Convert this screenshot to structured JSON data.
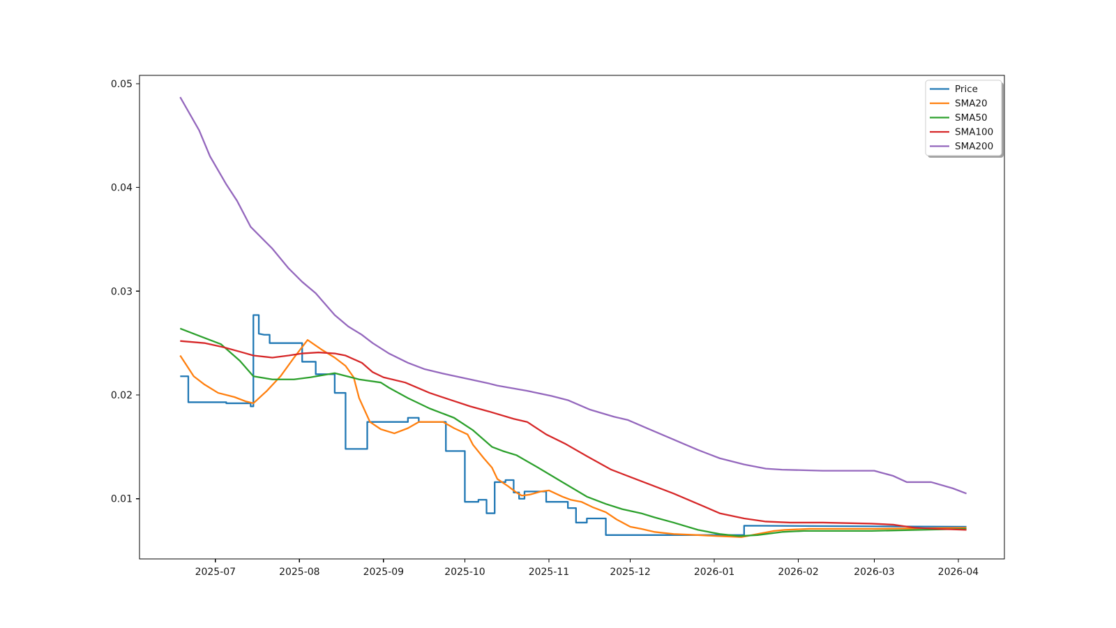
{
  "figure": {
    "background": "#ffffff",
    "title": ""
  },
  "legend": {
    "position": "upper right",
    "background": "#ffffff",
    "border_color": "#cccccc",
    "shadow_color": "#9e9e9e",
    "items": [
      "Price",
      "SMA20",
      "SMA50",
      "SMA100",
      "SMA200"
    ]
  },
  "chart_data": {
    "type": "line",
    "title": "",
    "xlabel": "",
    "ylabel": "",
    "grid": false,
    "legend_position": "upper right",
    "xlim": [
      "2025-06-03",
      "2026-04-18"
    ],
    "ylim": [
      0.0042,
      0.0508
    ],
    "x_ticks": [
      {
        "date": "2025-07-01",
        "label": "2025-07"
      },
      {
        "date": "2025-08-01",
        "label": "2025-08"
      },
      {
        "date": "2025-09-01",
        "label": "2025-09"
      },
      {
        "date": "2025-10-01",
        "label": "2025-10"
      },
      {
        "date": "2025-11-01",
        "label": "2025-11"
      },
      {
        "date": "2025-12-01",
        "label": "2025-12"
      },
      {
        "date": "2026-01-01",
        "label": "2026-01"
      },
      {
        "date": "2026-02-01",
        "label": "2026-02"
      },
      {
        "date": "2026-03-01",
        "label": "2026-03"
      },
      {
        "date": "2026-04-01",
        "label": "2026-04"
      }
    ],
    "y_ticks": [
      {
        "value": 0.01,
        "label": "0.01"
      },
      {
        "value": 0.02,
        "label": "0.02"
      },
      {
        "value": 0.03,
        "label": "0.03"
      },
      {
        "value": 0.04,
        "label": "0.04"
      },
      {
        "value": 0.05,
        "label": "0.05"
      }
    ],
    "series": [
      {
        "name": "Price",
        "color": "#1f77b4",
        "style": "step",
        "points": [
          [
            "2025-06-18",
            0.0218
          ],
          [
            "2025-06-21",
            0.0218
          ],
          [
            "2025-06-21",
            0.0193
          ],
          [
            "2025-07-05",
            0.0193
          ],
          [
            "2025-07-05",
            0.0192
          ],
          [
            "2025-07-14",
            0.0192
          ],
          [
            "2025-07-14",
            0.0189
          ],
          [
            "2025-07-15",
            0.0189
          ],
          [
            "2025-07-15",
            0.0277
          ],
          [
            "2025-07-17",
            0.0277
          ],
          [
            "2025-07-17",
            0.0259
          ],
          [
            "2025-07-19",
            0.0258
          ],
          [
            "2025-07-21",
            0.0258
          ],
          [
            "2025-07-21",
            0.025
          ],
          [
            "2025-08-02",
            0.025
          ],
          [
            "2025-08-02",
            0.0232
          ],
          [
            "2025-08-07",
            0.0232
          ],
          [
            "2025-08-07",
            0.022
          ],
          [
            "2025-08-14",
            0.022
          ],
          [
            "2025-08-14",
            0.0202
          ],
          [
            "2025-08-18",
            0.0202
          ],
          [
            "2025-08-18",
            0.0148
          ],
          [
            "2025-08-26",
            0.0148
          ],
          [
            "2025-08-26",
            0.0174
          ],
          [
            "2025-09-10",
            0.0174
          ],
          [
            "2025-09-10",
            0.0178
          ],
          [
            "2025-09-14",
            0.0178
          ],
          [
            "2025-09-14",
            0.0174
          ],
          [
            "2025-09-24",
            0.0174
          ],
          [
            "2025-09-24",
            0.0146
          ],
          [
            "2025-10-01",
            0.0146
          ],
          [
            "2025-10-01",
            0.0097
          ],
          [
            "2025-10-06",
            0.0097
          ],
          [
            "2025-10-06",
            0.0099
          ],
          [
            "2025-10-09",
            0.0099
          ],
          [
            "2025-10-09",
            0.0086
          ],
          [
            "2025-10-12",
            0.0086
          ],
          [
            "2025-10-12",
            0.0116
          ],
          [
            "2025-10-16",
            0.0116
          ],
          [
            "2025-10-16",
            0.0118
          ],
          [
            "2025-10-19",
            0.0118
          ],
          [
            "2025-10-19",
            0.0106
          ],
          [
            "2025-10-21",
            0.0106
          ],
          [
            "2025-10-21",
            0.01
          ],
          [
            "2025-10-23",
            0.01
          ],
          [
            "2025-10-23",
            0.0107
          ],
          [
            "2025-10-31",
            0.0107
          ],
          [
            "2025-10-31",
            0.0097
          ],
          [
            "2025-11-08",
            0.0097
          ],
          [
            "2025-11-08",
            0.0091
          ],
          [
            "2025-11-11",
            0.0091
          ],
          [
            "2025-11-11",
            0.0077
          ],
          [
            "2025-11-15",
            0.0077
          ],
          [
            "2025-11-15",
            0.0081
          ],
          [
            "2025-11-22",
            0.0081
          ],
          [
            "2025-11-22",
            0.0065
          ],
          [
            "2026-01-12",
            0.0065
          ],
          [
            "2026-01-12",
            0.0074
          ],
          [
            "2026-04-04",
            0.0073
          ]
        ]
      },
      {
        "name": "SMA20",
        "color": "#ff7f0e",
        "style": "line",
        "points": [
          [
            "2025-06-18",
            0.0238
          ],
          [
            "2025-06-20",
            0.023
          ],
          [
            "2025-06-23",
            0.0218
          ],
          [
            "2025-06-27",
            0.021
          ],
          [
            "2025-07-02",
            0.0202
          ],
          [
            "2025-07-08",
            0.0198
          ],
          [
            "2025-07-12",
            0.0194
          ],
          [
            "2025-07-15",
            0.0192
          ],
          [
            "2025-07-20",
            0.0204
          ],
          [
            "2025-07-25",
            0.0218
          ],
          [
            "2025-07-30",
            0.0236
          ],
          [
            "2025-08-04",
            0.0253
          ],
          [
            "2025-08-09",
            0.0244
          ],
          [
            "2025-08-14",
            0.0236
          ],
          [
            "2025-08-18",
            0.0228
          ],
          [
            "2025-08-21",
            0.0217
          ],
          [
            "2025-08-23",
            0.0197
          ],
          [
            "2025-08-27",
            0.0174
          ],
          [
            "2025-08-31",
            0.0167
          ],
          [
            "2025-09-05",
            0.0163
          ],
          [
            "2025-09-10",
            0.0168
          ],
          [
            "2025-09-14",
            0.0174
          ],
          [
            "2025-09-23",
            0.0174
          ],
          [
            "2025-09-27",
            0.0168
          ],
          [
            "2025-10-02",
            0.0162
          ],
          [
            "2025-10-04",
            0.0152
          ],
          [
            "2025-10-08",
            0.0139
          ],
          [
            "2025-10-11",
            0.013
          ],
          [
            "2025-10-13",
            0.0119
          ],
          [
            "2025-10-17",
            0.0112
          ],
          [
            "2025-10-20",
            0.0106
          ],
          [
            "2025-10-22",
            0.0103
          ],
          [
            "2025-10-25",
            0.0104
          ],
          [
            "2025-10-29",
            0.0107
          ],
          [
            "2025-11-01",
            0.0108
          ],
          [
            "2025-11-06",
            0.0102
          ],
          [
            "2025-11-09",
            0.0099
          ],
          [
            "2025-11-13",
            0.0097
          ],
          [
            "2025-11-17",
            0.0092
          ],
          [
            "2025-11-22",
            0.0087
          ],
          [
            "2025-11-26",
            0.008
          ],
          [
            "2025-12-01",
            0.0073
          ],
          [
            "2025-12-05",
            0.0071
          ],
          [
            "2025-12-10",
            0.0068
          ],
          [
            "2025-12-17",
            0.0066
          ],
          [
            "2025-12-26",
            0.0065
          ],
          [
            "2026-01-02",
            0.0064
          ],
          [
            "2026-01-11",
            0.0063
          ],
          [
            "2026-01-17",
            0.0066
          ],
          [
            "2026-01-23",
            0.0069
          ],
          [
            "2026-01-27",
            0.007
          ],
          [
            "2026-02-05",
            0.0071
          ],
          [
            "2026-03-01",
            0.0071
          ],
          [
            "2026-04-04",
            0.0072
          ]
        ]
      },
      {
        "name": "SMA50",
        "color": "#2ca02c",
        "style": "line",
        "points": [
          [
            "2025-06-18",
            0.0264
          ],
          [
            "2025-06-25",
            0.0257
          ],
          [
            "2025-07-03",
            0.0249
          ],
          [
            "2025-07-10",
            0.0233
          ],
          [
            "2025-07-15",
            0.0218
          ],
          [
            "2025-07-22",
            0.0215
          ],
          [
            "2025-07-30",
            0.0215
          ],
          [
            "2025-08-05",
            0.0217
          ],
          [
            "2025-08-14",
            0.0221
          ],
          [
            "2025-08-23",
            0.0215
          ],
          [
            "2025-08-31",
            0.0212
          ],
          [
            "2025-09-03",
            0.0207
          ],
          [
            "2025-09-10",
            0.0197
          ],
          [
            "2025-09-18",
            0.0187
          ],
          [
            "2025-09-27",
            0.0178
          ],
          [
            "2025-10-04",
            0.0166
          ],
          [
            "2025-10-11",
            0.015
          ],
          [
            "2025-10-15",
            0.0146
          ],
          [
            "2025-10-20",
            0.0142
          ],
          [
            "2025-10-28",
            0.013
          ],
          [
            "2025-11-06",
            0.0116
          ],
          [
            "2025-11-15",
            0.0102
          ],
          [
            "2025-11-22",
            0.0095
          ],
          [
            "2025-11-28",
            0.009
          ],
          [
            "2025-12-05",
            0.0086
          ],
          [
            "2025-12-10",
            0.0082
          ],
          [
            "2025-12-17",
            0.0077
          ],
          [
            "2025-12-26",
            0.007
          ],
          [
            "2026-01-03",
            0.0066
          ],
          [
            "2026-01-10",
            0.0064
          ],
          [
            "2026-01-17",
            0.0065
          ],
          [
            "2026-01-26",
            0.0068
          ],
          [
            "2026-02-03",
            0.0069
          ],
          [
            "2026-02-28",
            0.0069
          ],
          [
            "2026-03-18",
            0.007
          ],
          [
            "2026-04-04",
            0.0071
          ]
        ]
      },
      {
        "name": "SMA100",
        "color": "#d62728",
        "style": "line",
        "points": [
          [
            "2025-06-18",
            0.0252
          ],
          [
            "2025-06-27",
            0.025
          ],
          [
            "2025-07-04",
            0.0246
          ],
          [
            "2025-07-11",
            0.0241
          ],
          [
            "2025-07-15",
            0.0238
          ],
          [
            "2025-07-22",
            0.0236
          ],
          [
            "2025-07-28",
            0.0238
          ],
          [
            "2025-08-02",
            0.024
          ],
          [
            "2025-08-08",
            0.0241
          ],
          [
            "2025-08-14",
            0.024
          ],
          [
            "2025-08-18",
            0.0238
          ],
          [
            "2025-08-24",
            0.0231
          ],
          [
            "2025-08-28",
            0.0222
          ],
          [
            "2025-09-01",
            0.0217
          ],
          [
            "2025-09-09",
            0.0212
          ],
          [
            "2025-09-18",
            0.0202
          ],
          [
            "2025-09-26",
            0.0195
          ],
          [
            "2025-10-03",
            0.0189
          ],
          [
            "2025-10-10",
            0.0184
          ],
          [
            "2025-10-19",
            0.0177
          ],
          [
            "2025-10-24",
            0.0174
          ],
          [
            "2025-10-31",
            0.0162
          ],
          [
            "2025-11-07",
            0.0153
          ],
          [
            "2025-11-15",
            0.0141
          ],
          [
            "2025-11-24",
            0.0128
          ],
          [
            "2025-11-30",
            0.0122
          ],
          [
            "2025-12-08",
            0.0114
          ],
          [
            "2025-12-17",
            0.0105
          ],
          [
            "2025-12-26",
            0.0095
          ],
          [
            "2026-01-03",
            0.0086
          ],
          [
            "2026-01-12",
            0.0081
          ],
          [
            "2026-01-20",
            0.0078
          ],
          [
            "2026-01-29",
            0.0077
          ],
          [
            "2026-02-10",
            0.0077
          ],
          [
            "2026-02-28",
            0.0076
          ],
          [
            "2026-03-08",
            0.0075
          ],
          [
            "2026-03-16",
            0.0072
          ],
          [
            "2026-03-24",
            0.0071
          ],
          [
            "2026-04-04",
            0.007
          ]
        ]
      },
      {
        "name": "SMA200",
        "color": "#9467bd",
        "style": "line",
        "points": [
          [
            "2025-06-18",
            0.0487
          ],
          [
            "2025-06-25",
            0.0455
          ],
          [
            "2025-06-29",
            0.043
          ],
          [
            "2025-07-05",
            0.0403
          ],
          [
            "2025-07-09",
            0.0387
          ],
          [
            "2025-07-14",
            0.0362
          ],
          [
            "2025-07-22",
            0.0341
          ],
          [
            "2025-07-28",
            0.0322
          ],
          [
            "2025-08-02",
            0.0309
          ],
          [
            "2025-08-07",
            0.0298
          ],
          [
            "2025-08-14",
            0.0277
          ],
          [
            "2025-08-19",
            0.0266
          ],
          [
            "2025-08-24",
            0.0258
          ],
          [
            "2025-08-28",
            0.025
          ],
          [
            "2025-09-03",
            0.024
          ],
          [
            "2025-09-10",
            0.0231
          ],
          [
            "2025-09-16",
            0.0225
          ],
          [
            "2025-09-24",
            0.022
          ],
          [
            "2025-10-03",
            0.0215
          ],
          [
            "2025-10-10",
            0.0211
          ],
          [
            "2025-10-13",
            0.0209
          ],
          [
            "2025-10-24",
            0.0204
          ],
          [
            "2025-11-02",
            0.0199
          ],
          [
            "2025-11-08",
            0.0195
          ],
          [
            "2025-11-16",
            0.0186
          ],
          [
            "2025-11-25",
            0.0179
          ],
          [
            "2025-11-30",
            0.0176
          ],
          [
            "2025-12-08",
            0.0167
          ],
          [
            "2025-12-17",
            0.0157
          ],
          [
            "2025-12-26",
            0.0147
          ],
          [
            "2026-01-03",
            0.0139
          ],
          [
            "2026-01-12",
            0.0133
          ],
          [
            "2026-01-20",
            0.0129
          ],
          [
            "2026-01-26",
            0.0128
          ],
          [
            "2026-02-10",
            0.0127
          ],
          [
            "2026-03-01",
            0.0127
          ],
          [
            "2026-03-08",
            0.0122
          ],
          [
            "2026-03-13",
            0.0116
          ],
          [
            "2026-03-22",
            0.0116
          ],
          [
            "2026-03-30",
            0.011
          ],
          [
            "2026-04-04",
            0.0105
          ]
        ]
      }
    ]
  }
}
